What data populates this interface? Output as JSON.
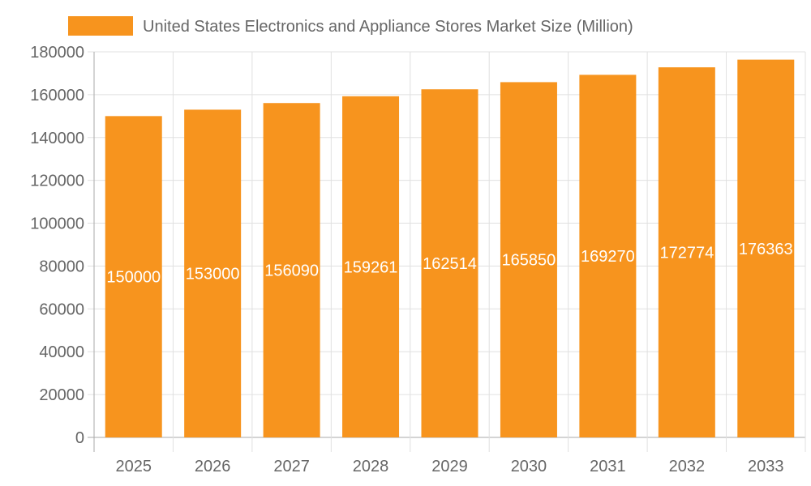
{
  "chart_data": {
    "type": "bar",
    "title": "",
    "xlabel": "",
    "ylabel": "",
    "categories": [
      "2025",
      "2026",
      "2027",
      "2028",
      "2029",
      "2030",
      "2031",
      "2032",
      "2033"
    ],
    "series": [
      {
        "name": "United States Electronics and Appliance Stores Market Size (Million)",
        "values": [
          150000,
          153000,
          156090,
          159261,
          162514,
          165850,
          169270,
          172774,
          176363
        ],
        "color": "#f7941e"
      }
    ],
    "ylim": [
      0,
      180000
    ],
    "yticks": [
      "0",
      "20000",
      "40000",
      "60000",
      "80000",
      "100000",
      "120000",
      "140000",
      "160000",
      "180000"
    ],
    "grid": true,
    "legend_position": "top",
    "data_labels": true
  }
}
